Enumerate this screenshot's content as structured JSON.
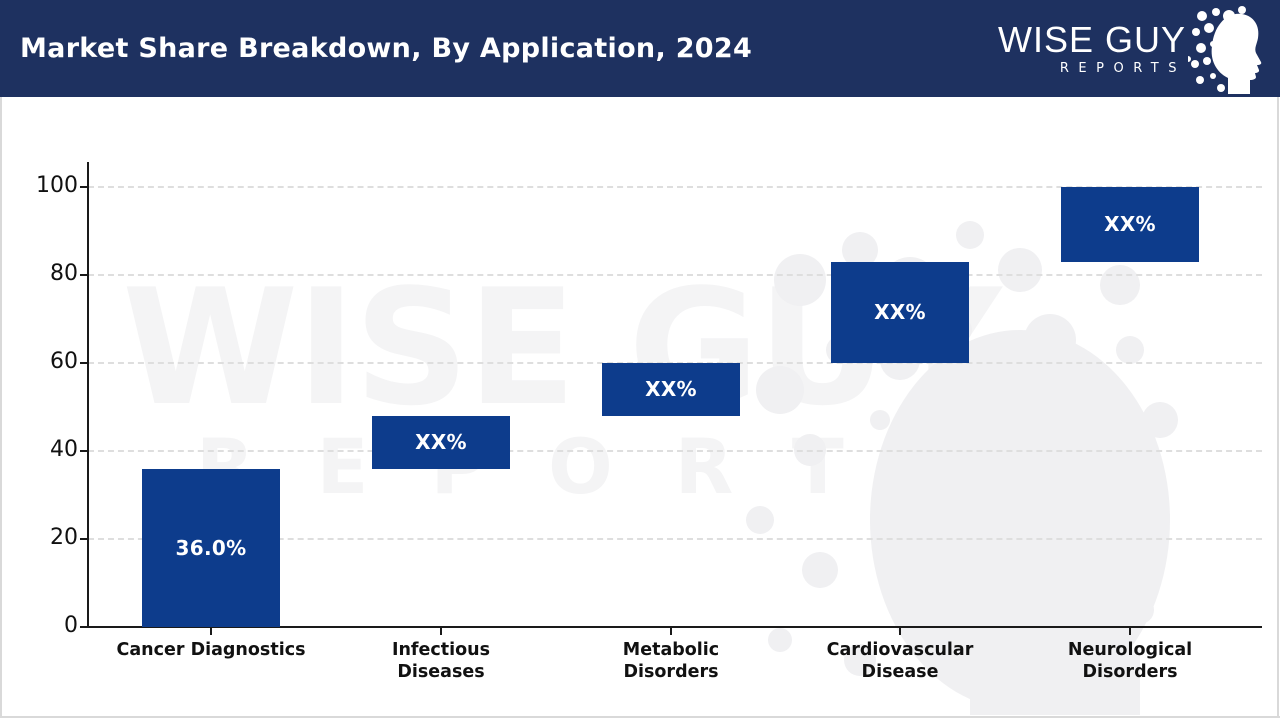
{
  "header": {
    "title": "Market Share Breakdown, By Application, 2024",
    "logo": {
      "line1": "WISE GUY",
      "line2": "REPORTS"
    },
    "bg_color": "#1e3160"
  },
  "watermark": {
    "line1": "WISE GUY",
    "line2": "REPORTS"
  },
  "chart_data": {
    "type": "bar",
    "variant": "waterfall",
    "title": "Market Share Breakdown, By Application, 2024",
    "categories": [
      "Cancer Diagnostics",
      "Infectious\nDiseases",
      "Metabolic\nDisorders",
      "Cardiovascular\nDisease",
      "Neurological\nDisorders"
    ],
    "segments": [
      {
        "category": "Cancer Diagnostics",
        "start": 0,
        "end": 36,
        "value": 36,
        "label": "36.0%"
      },
      {
        "category": "Infectious Diseases",
        "start": 36,
        "end": 48,
        "value": 12,
        "label": "XX%"
      },
      {
        "category": "Metabolic Disorders",
        "start": 48,
        "end": 60,
        "value": 12,
        "label": "XX%"
      },
      {
        "category": "Cardiovascular Disease",
        "start": 60,
        "end": 83,
        "value": 23,
        "label": "XX%"
      },
      {
        "category": "Neurological Disorders",
        "start": 83,
        "end": 100,
        "value": 17,
        "label": "XX%"
      }
    ],
    "ylim": [
      0,
      100
    ],
    "yticks": [
      0,
      20,
      40,
      60,
      80,
      100
    ],
    "xlabel": "",
    "ylabel": "",
    "grid": "horizontal-dashed",
    "legend": "none",
    "bar_color": "#0d3c8c",
    "bar_label_color": "#ffffff",
    "axis_color": "#1a1a1a"
  }
}
